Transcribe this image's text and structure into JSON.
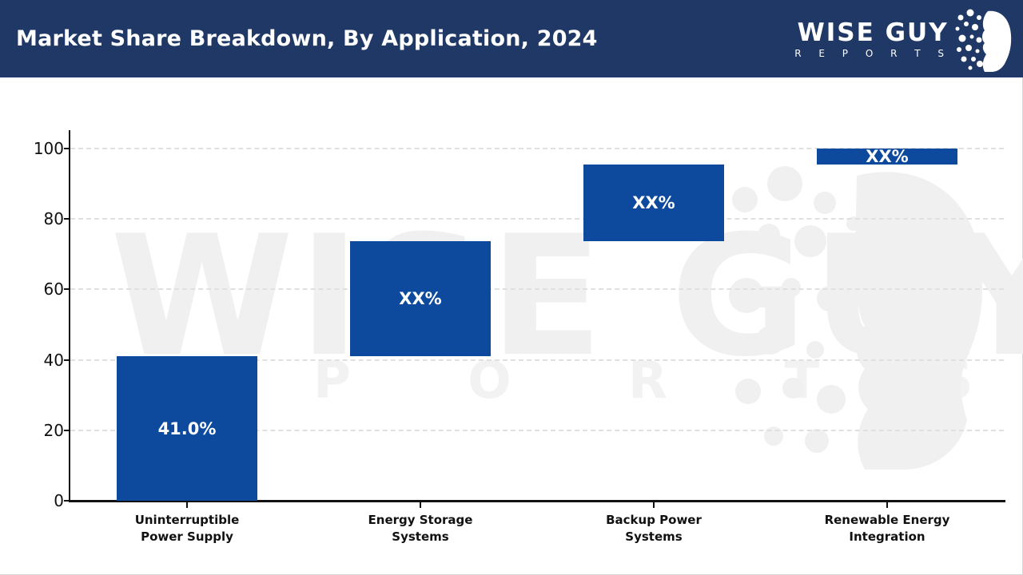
{
  "header": {
    "title": "Market Share Breakdown, By Application, 2024",
    "bg_color": "#1f3866",
    "logo": {
      "name": "WISE GUY",
      "sub": "R E P O R T S"
    }
  },
  "watermark": {
    "main": "WISE GUY",
    "sub": "P O R T S"
  },
  "chart_data": {
    "type": "bar",
    "variant": "waterfall",
    "title": "Market Share Breakdown, By Application, 2024",
    "categories": [
      {
        "line1": "Uninterruptible",
        "line2": "Power Supply"
      },
      {
        "line1": "Energy Storage",
        "line2": "Systems"
      },
      {
        "line1": "Backup Power",
        "line2": "Systems"
      },
      {
        "line1": "Renewable Energy",
        "line2": "Integration"
      }
    ],
    "segments": [
      {
        "start": 0,
        "end": 41.0,
        "label": "41.0%"
      },
      {
        "start": 41.0,
        "end": 73.7,
        "label": "XX%"
      },
      {
        "start": 73.7,
        "end": 95.4,
        "label": "XX%"
      },
      {
        "start": 95.4,
        "end": 100.0,
        "label": "XX%"
      }
    ],
    "ylim": [
      0,
      100
    ],
    "yticks": [
      0,
      20,
      40,
      60,
      80,
      100
    ],
    "xlabel": "",
    "ylabel": "",
    "bar_color": "#0d4a9e",
    "value_label_color": "#ffffff",
    "grid": {
      "axis": "y",
      "style": "dashed",
      "color": "#e0e0e0"
    },
    "legend": "none"
  }
}
